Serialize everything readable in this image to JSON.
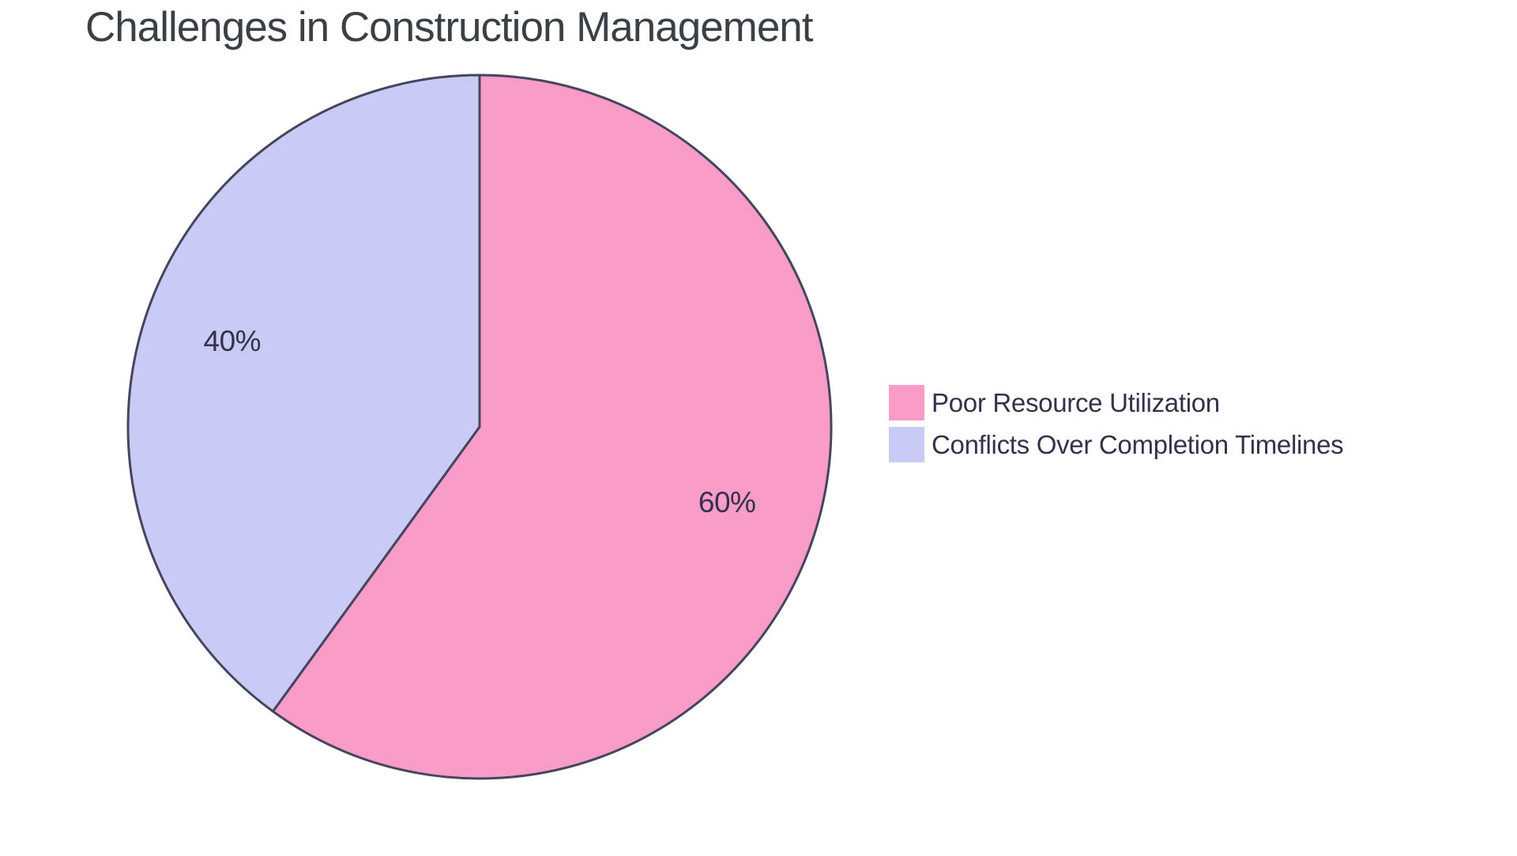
{
  "page": {
    "background": "#FFFFFF"
  },
  "chart_data": {
    "type": "pie",
    "title": "Challenges in Construction Management",
    "slices": [
      {
        "label": "Poor Resource Utilization",
        "value": 60,
        "pct_label": "60%",
        "color": "#F99CC8"
      },
      {
        "label": "Conflicts Over Completion Timelines",
        "value": 40,
        "pct_label": "40%",
        "color": "#C9CAF5"
      }
    ],
    "start_angle": "12-oclock",
    "direction": "clockwise",
    "stroke_color": "#46455D",
    "stroke_width": 3,
    "label_color": "#33324A",
    "title_color": "#3B4046",
    "legend_position": "right",
    "grid": false
  }
}
